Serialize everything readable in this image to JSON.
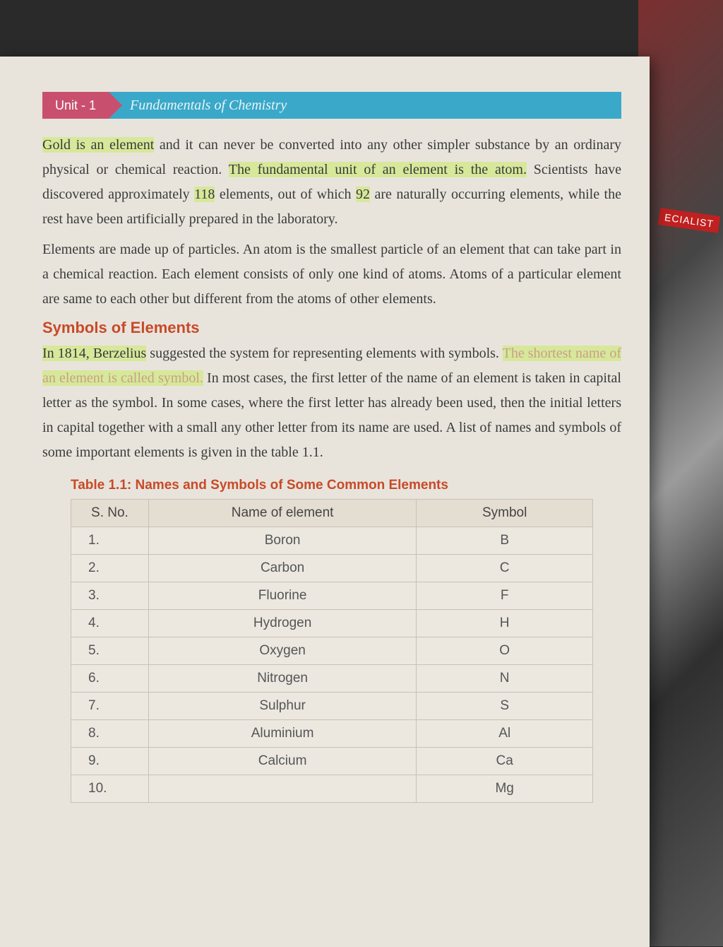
{
  "header": {
    "unit": "Unit - 1",
    "chapter": "Fundamentals of Chemistry"
  },
  "paragraphs": {
    "p1a": "Gold is an element",
    "p1b": " and it can never be converted into any other simpler substance by an ordinary physical or chemical reaction. ",
    "p1c": "The fundamental unit of an element is the atom.",
    "p1d": " Scientists have discovered approximately ",
    "p1e": "118",
    "p1f": " elements, out of which ",
    "p1g": "92",
    "p1h": " are naturally occurring elements, while the rest have been artificially prepared in the laboratory.",
    "p2": "Elements are made up of particles. An atom is the smallest particle of an element that can take part in a chemical reaction. Each element consists of only one kind of atoms. Atoms of a particular element are same to each other but different from the atoms of other elements.",
    "p3a": "In 1814, Berzelius",
    "p3b": " suggested the system for representing elements with symbols. ",
    "p3c": "The shortest name of an element is called symbol.",
    "p3d": " In most cases, the first letter of the name of an element is taken in capital letter as the symbol. In some cases, where the first letter has already been used, then the initial letters in capital together with a small any other letter from its name are used. A list of names and symbols of some important elements is given in the table 1.1."
  },
  "headings": {
    "symbols": "Symbols of Elements"
  },
  "table": {
    "caption": "Table 1.1: Names and Symbols of Some Common Elements",
    "columns": [
      "S. No.",
      "Name of element",
      "Symbol"
    ],
    "rows": [
      [
        "1.",
        "Boron",
        "B"
      ],
      [
        "2.",
        "Carbon",
        "C"
      ],
      [
        "3.",
        "Fluorine",
        "F"
      ],
      [
        "4.",
        "Hydrogen",
        "H"
      ],
      [
        "5.",
        "Oxygen",
        "O"
      ],
      [
        "6.",
        "Nitrogen",
        "N"
      ],
      [
        "7.",
        "Sulphur",
        "S"
      ],
      [
        "8.",
        "Aluminium",
        "Al"
      ],
      [
        "9.",
        "Calcium",
        "Ca"
      ],
      [
        "10.",
        "",
        "Mg"
      ]
    ]
  },
  "side": {
    "label": "ECIALIST"
  },
  "colors": {
    "page_bg": "#e8e4dc",
    "unit_bg": "#c8506e",
    "chapter_bg": "#3aa8c9",
    "heading": "#c84a28",
    "highlight": "#d7e89a",
    "body_text": "#3a3a3a",
    "table_border": "#c8c0b4"
  }
}
